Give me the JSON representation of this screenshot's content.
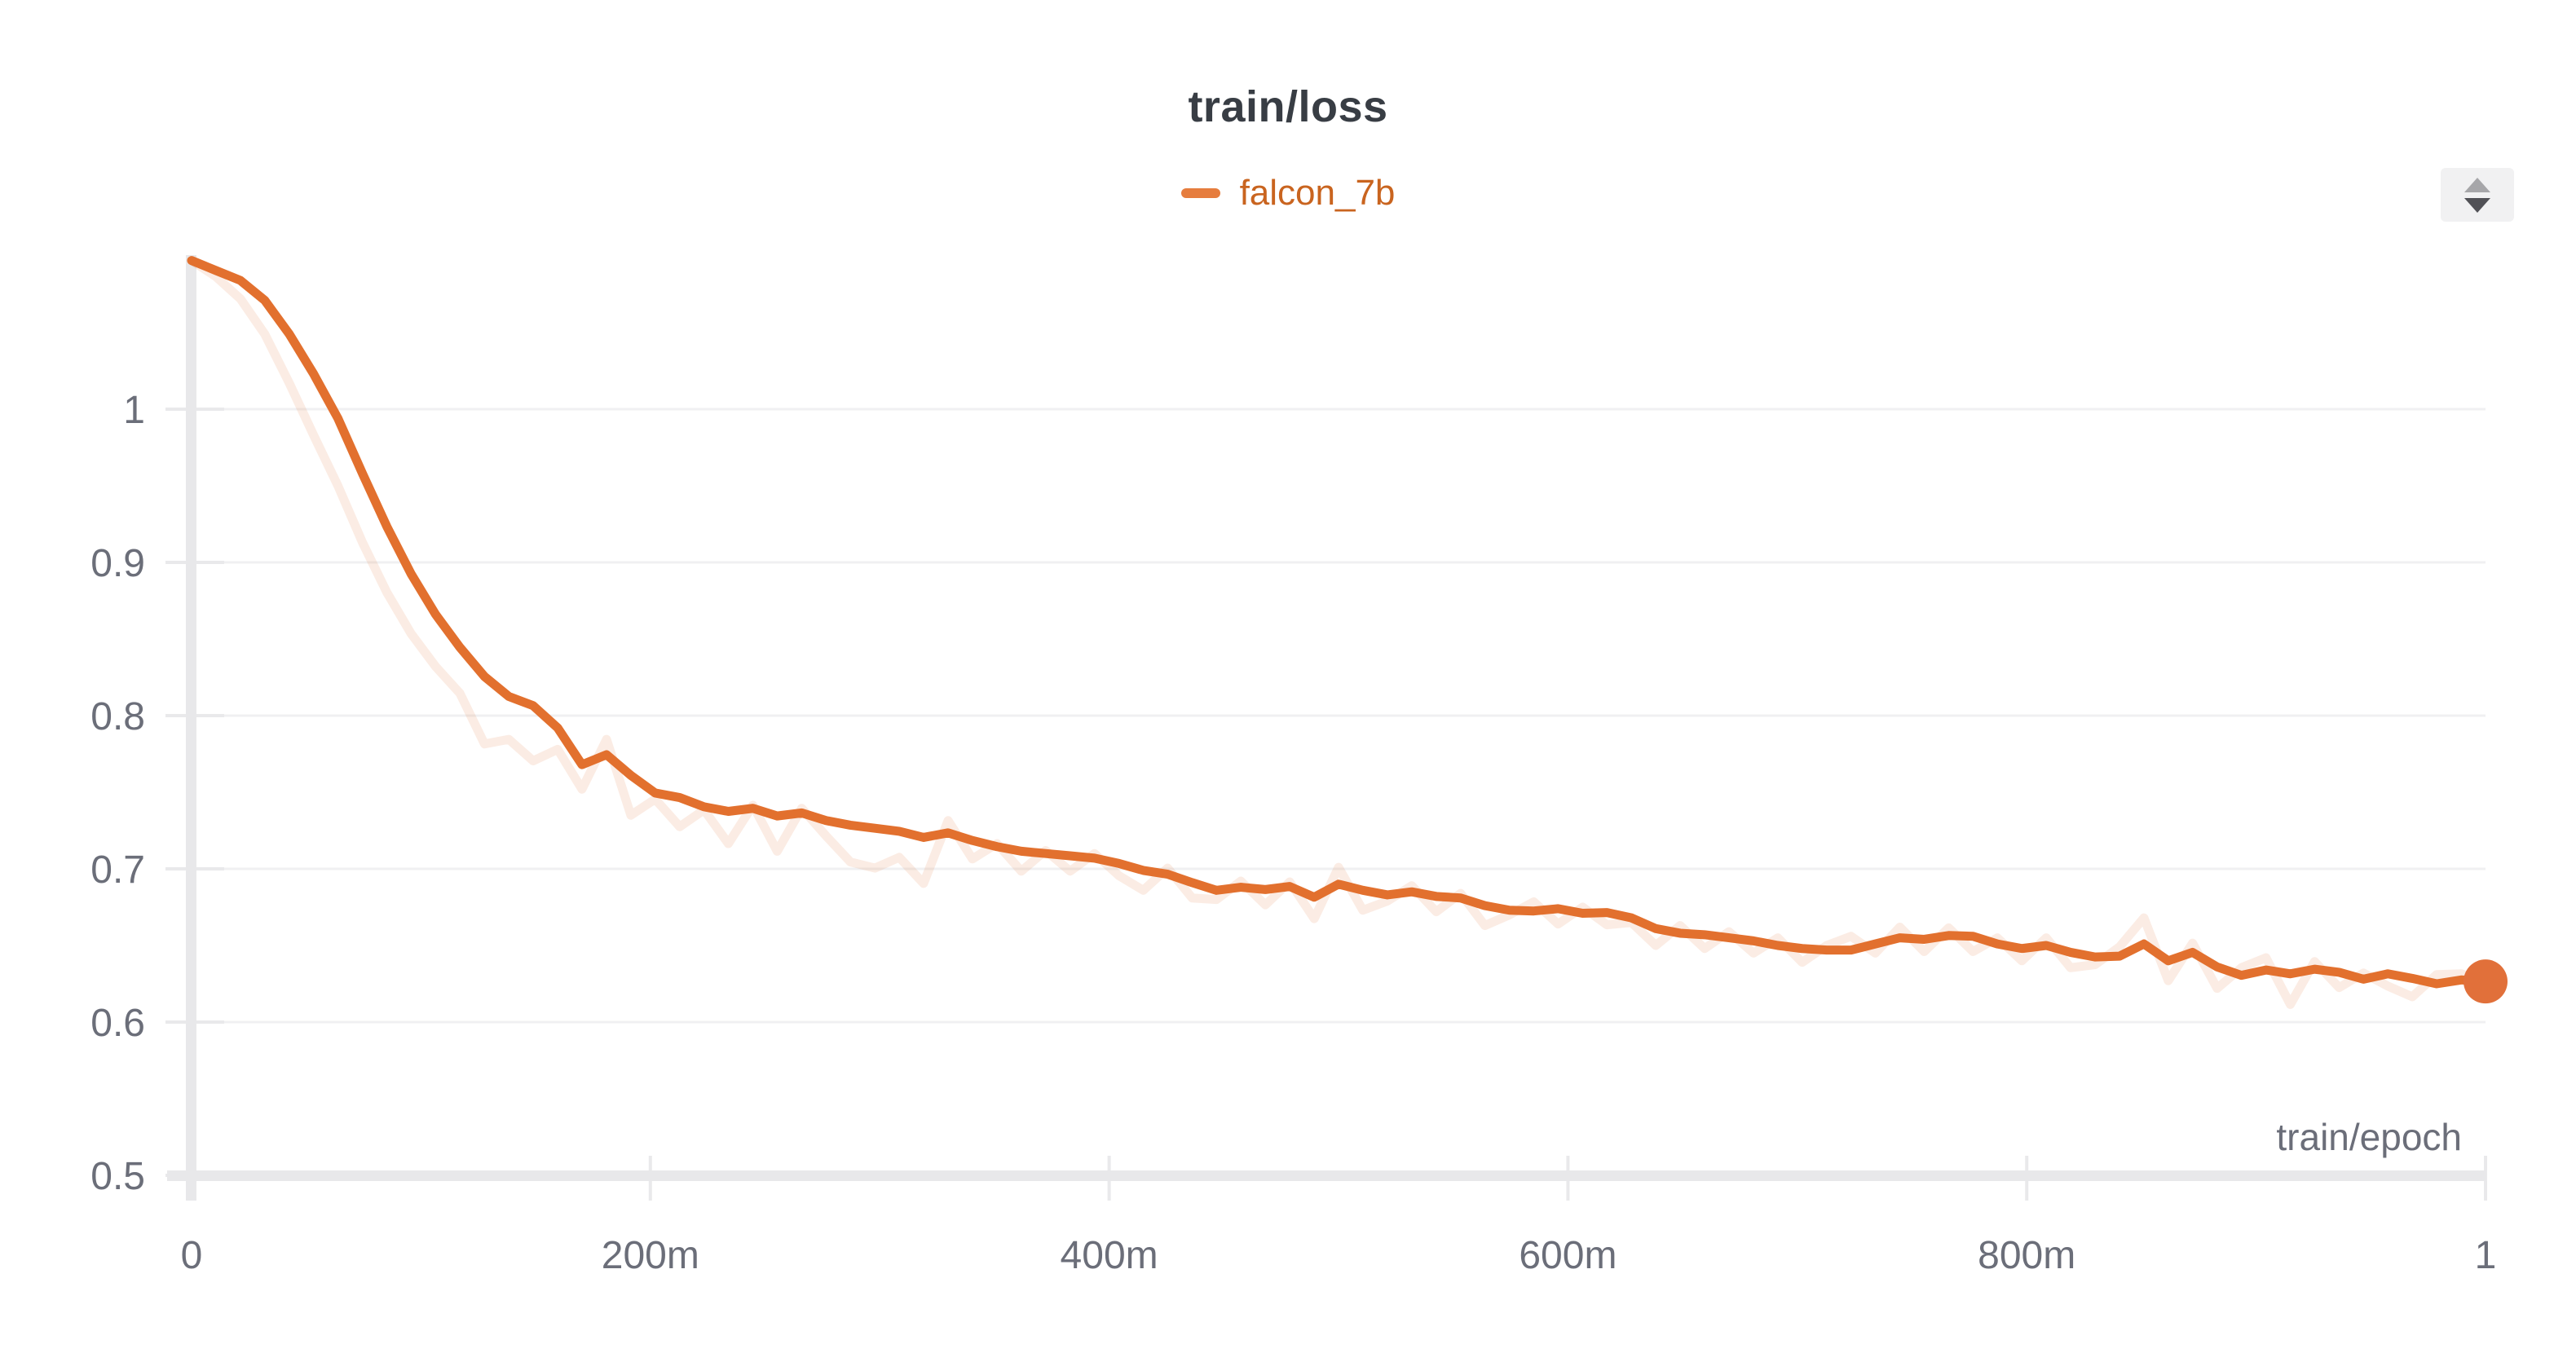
{
  "header": {
    "title": "train/loss"
  },
  "legend": {
    "series_label": "falcon_7b"
  },
  "controls": {
    "sort_toggle": {
      "up_arrow_icon": "triangle-up",
      "down_arrow_icon": "triangle-down"
    }
  },
  "colors": {
    "line": "#e2702e",
    "raw_line": "#e2702e",
    "raw_opacity": "0.13",
    "dot": "#e1703a",
    "swatch": "#e67d3e",
    "legend_text": "#c9641f",
    "title_text": "#383d44",
    "tick_label": "#6b6e79",
    "axis_bar": "#e8e8ea",
    "tick_mark": "#e9e9eb",
    "gridline": "#f0f0f2",
    "button_bg": "#f1f1f2",
    "arrow_up": "#a6a6a9",
    "arrow_down": "#515156",
    "background": "#ffffff"
  },
  "chart_data": {
    "type": "line",
    "title": "train/loss",
    "xlabel": "train/epoch",
    "ylabel": "",
    "grid": "horizontal",
    "legend_position": "top-center",
    "x_axis": {
      "range": [
        0,
        1
      ],
      "ticks": [
        {
          "label": "0",
          "value": 0.0
        },
        {
          "label": "200m",
          "value": 0.2
        },
        {
          "label": "400m",
          "value": 0.4
        },
        {
          "label": "600m",
          "value": 0.6
        },
        {
          "label": "800m",
          "value": 0.8
        },
        {
          "label": "1",
          "value": 1.0
        }
      ]
    },
    "y_axis": {
      "range": [
        0.5,
        1.12
      ],
      "ticks": [
        {
          "label": "1",
          "value": 1.0
        },
        {
          "label": "0.9",
          "value": 0.9
        },
        {
          "label": "0.8",
          "value": 0.8
        },
        {
          "label": "0.7",
          "value": 0.7
        },
        {
          "label": "0.6",
          "value": 0.6
        },
        {
          "label": "0.5",
          "value": 0.5
        }
      ]
    },
    "x": [
      0,
      0.0106,
      0.0213,
      0.0319,
      0.0426,
      0.0532,
      0.0638,
      0.0745,
      0.0851,
      0.0957,
      0.1064,
      0.117,
      0.1277,
      0.1383,
      0.1489,
      0.1596,
      0.1702,
      0.1809,
      0.1915,
      0.2021,
      0.2128,
      0.2234,
      0.234,
      0.2447,
      0.2553,
      0.266,
      0.2766,
      0.2872,
      0.2979,
      0.3085,
      0.3191,
      0.3298,
      0.3404,
      0.3511,
      0.3617,
      0.3723,
      0.383,
      0.3936,
      0.4043,
      0.4149,
      0.4255,
      0.4362,
      0.4468,
      0.4574,
      0.4681,
      0.4787,
      0.4894,
      0.5,
      0.5106,
      0.5213,
      0.5319,
      0.5426,
      0.5532,
      0.5638,
      0.5745,
      0.5851,
      0.5957,
      0.6064,
      0.617,
      0.6277,
      0.6383,
      0.6489,
      0.6596,
      0.6702,
      0.6809,
      0.6915,
      0.7021,
      0.7128,
      0.7234,
      0.734,
      0.7447,
      0.7553,
      0.766,
      0.7766,
      0.7872,
      0.7979,
      0.8085,
      0.8191,
      0.8298,
      0.8404,
      0.8511,
      0.8617,
      0.8723,
      0.883,
      0.8936,
      0.9043,
      0.9149,
      0.9255,
      0.9362,
      0.9468,
      0.9574,
      0.9681,
      0.9787,
      0.9894,
      1
    ],
    "series": [
      {
        "name": "falcon_7b",
        "role": "smoothed",
        "values": [
          1.097,
          1.0905,
          1.084,
          1.071,
          1.049,
          1.023,
          0.994,
          0.958,
          0.9235,
          0.8925,
          0.866,
          0.8445,
          0.8255,
          0.8125,
          0.8065,
          0.792,
          0.768,
          0.7745,
          0.761,
          0.7495,
          0.7465,
          0.7405,
          0.7375,
          0.7395,
          0.7345,
          0.7365,
          0.7315,
          0.7285,
          0.7265,
          0.7245,
          0.7205,
          0.7235,
          0.7185,
          0.7145,
          0.7115,
          0.71,
          0.7085,
          0.707,
          0.7035,
          0.699,
          0.6965,
          0.691,
          0.686,
          0.688,
          0.6865,
          0.6885,
          0.6815,
          0.69,
          0.686,
          0.683,
          0.685,
          0.682,
          0.681,
          0.676,
          0.673,
          0.6725,
          0.674,
          0.671,
          0.6715,
          0.668,
          0.661,
          0.658,
          0.657,
          0.655,
          0.653,
          0.65,
          0.648,
          0.647,
          0.647,
          0.651,
          0.655,
          0.654,
          0.6565,
          0.656,
          0.651,
          0.648,
          0.65,
          0.6455,
          0.6425,
          0.643,
          0.651,
          0.64,
          0.6455,
          0.636,
          0.6305,
          0.634,
          0.6315,
          0.6345,
          0.6325,
          0.628,
          0.6315,
          0.6285,
          0.625,
          0.6275,
          0.6265
        ]
      },
      {
        "name": "falcon_7b",
        "role": "original-unsmoothed",
        "values": [
          1.097,
          1.0865,
          1.072,
          1.049,
          1.017,
          0.983,
          0.95,
          0.913,
          0.8805,
          0.8535,
          0.832,
          0.8145,
          0.7815,
          0.7845,
          0.7705,
          0.778,
          0.752,
          0.7845,
          0.735,
          0.7455,
          0.7275,
          0.7385,
          0.7165,
          0.7415,
          0.7115,
          0.7395,
          0.7215,
          0.7045,
          0.7005,
          0.7075,
          0.6905,
          0.7315,
          0.7065,
          0.7165,
          0.6985,
          0.712,
          0.6985,
          0.71,
          0.6955,
          0.686,
          0.7005,
          0.681,
          0.68,
          0.692,
          0.6765,
          0.6915,
          0.6675,
          0.701,
          0.673,
          0.679,
          0.689,
          0.672,
          0.684,
          0.663,
          0.67,
          0.6785,
          0.664,
          0.675,
          0.6635,
          0.665,
          0.65,
          0.663,
          0.648,
          0.659,
          0.645,
          0.655,
          0.639,
          0.65,
          0.656,
          0.645,
          0.662,
          0.646,
          0.6615,
          0.646,
          0.655,
          0.64,
          0.655,
          0.6355,
          0.6375,
          0.649,
          0.668,
          0.627,
          0.6515,
          0.622,
          0.6355,
          0.642,
          0.6115,
          0.6395,
          0.6225,
          0.632,
          0.6235,
          0.6165,
          0.631,
          0.6315,
          0.6265
        ]
      }
    ],
    "end_marker": {
      "x": 1,
      "y": 0.6265
    }
  }
}
